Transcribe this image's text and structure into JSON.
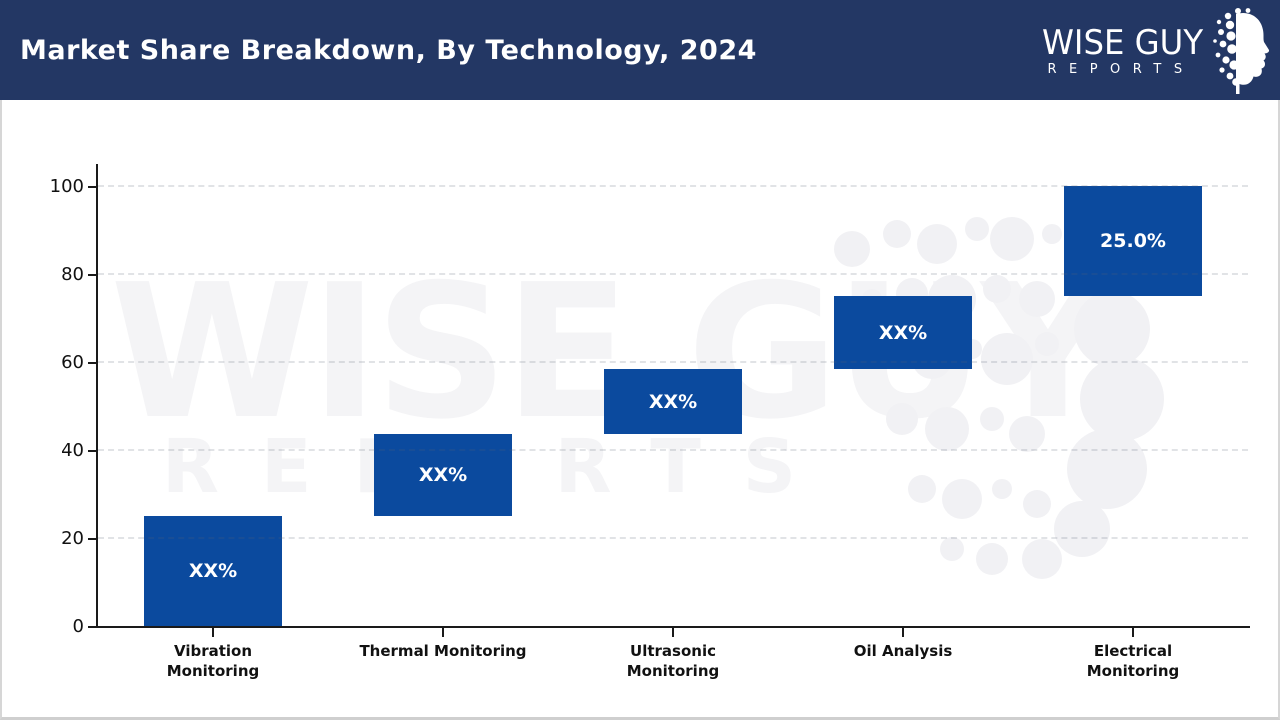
{
  "header": {
    "title": "Market Share Breakdown, By Technology, 2024",
    "logo": {
      "wordmark": "WISE GUY",
      "subtext": "REPORTS"
    }
  },
  "watermark": {
    "line1": "WISE GUY",
    "line2": "REPORTS"
  },
  "colors": {
    "header_bg": "#233764",
    "bar": "#0b4a9e",
    "bar_label": "#ffffff",
    "axis": "#1a1a1a",
    "grid": "#dcdcdc",
    "watermark": "#f4f4f6"
  },
  "chart_data": {
    "type": "bar",
    "variant": "waterfall",
    "title": "Market Share Breakdown, By Technology, 2024",
    "categories": [
      "Vibration Monitoring",
      "Thermal Monitoring",
      "Ultrasonic Monitoring",
      "Oil Analysis",
      "Electrical Monitoring"
    ],
    "category_lines": [
      [
        "Vibration",
        "Monitoring"
      ],
      [
        "Thermal Monitoring"
      ],
      [
        "Ultrasonic",
        "Monitoring"
      ],
      [
        "Oil Analysis"
      ],
      [
        "Electrical",
        "Monitoring"
      ]
    ],
    "segments": [
      {
        "category": "Vibration Monitoring",
        "start": 0.0,
        "end": 24.9,
        "label": "XX%"
      },
      {
        "category": "Thermal Monitoring",
        "start": 24.9,
        "end": 43.6,
        "label": "XX%"
      },
      {
        "category": "Ultrasonic Monitoring",
        "start": 43.7,
        "end": 58.3,
        "label": "XX%"
      },
      {
        "category": "Oil Analysis",
        "start": 58.5,
        "end": 74.9,
        "label": "XX%"
      },
      {
        "category": "Electrical Monitoring",
        "start": 75.0,
        "end": 100.0,
        "label": "25.0%"
      }
    ],
    "yticks": [
      0,
      20,
      40,
      60,
      80,
      100
    ],
    "ylim": [
      0,
      105
    ],
    "xlabel": "",
    "ylabel": "",
    "grid": "horizontal-dashed",
    "legend": "none"
  }
}
